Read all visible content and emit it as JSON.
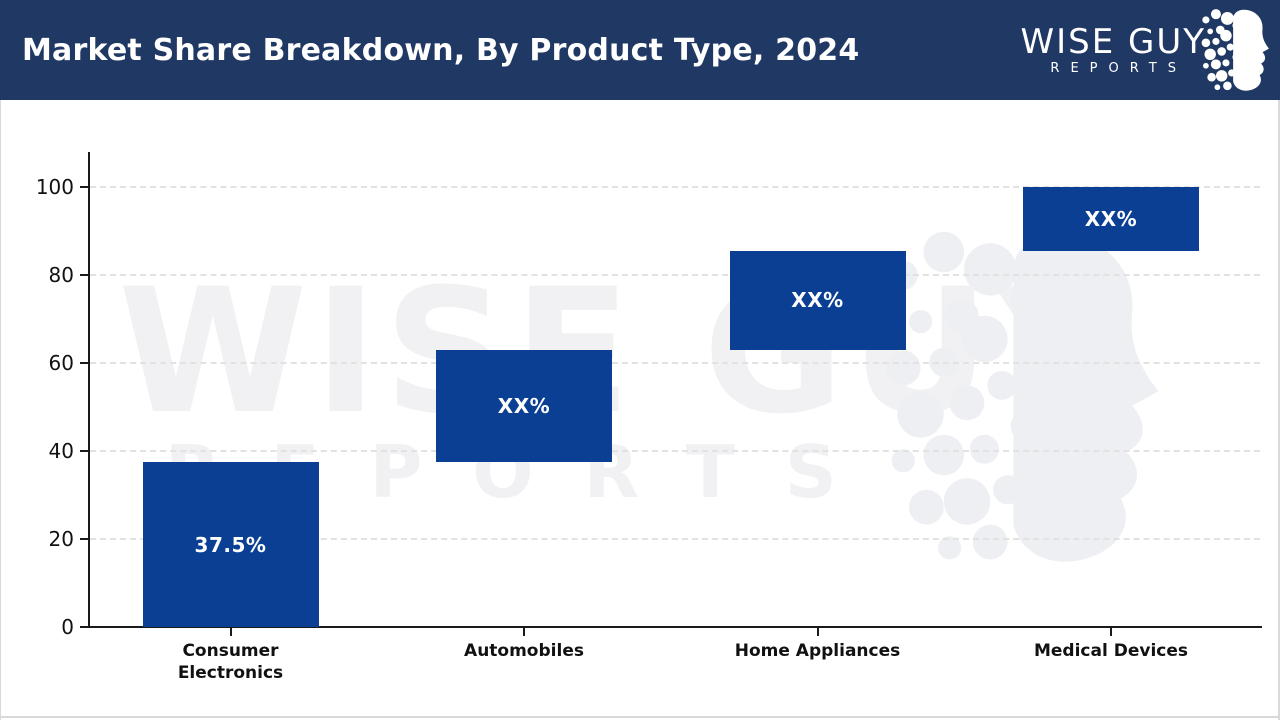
{
  "header": {
    "title": "Market Share Breakdown, By Product Type, 2024",
    "bg_color": "#203864",
    "logo": {
      "line1": "WISE GUY",
      "line2": "REPORTS"
    }
  },
  "watermark": {
    "line1": "WISE GUY",
    "line2": "REPORTS"
  },
  "chart_data": {
    "type": "bar",
    "subtype": "floating-waterfall",
    "title": "Market Share Breakdown, By Product Type, 2024",
    "categories": [
      "Consumer Electronics",
      "Automobiles",
      "Home Appliances",
      "Medical Devices"
    ],
    "category_lines": [
      [
        "Consumer",
        "Electronics"
      ],
      [
        "Automobiles"
      ],
      [
        "Home Appliances"
      ],
      [
        "Medical Devices"
      ]
    ],
    "segments": [
      [
        0,
        37.5
      ],
      [
        37.5,
        63
      ],
      [
        63,
        85.5
      ],
      [
        85.5,
        100
      ]
    ],
    "values": [
      37.5,
      25.5,
      22.5,
      14.5
    ],
    "bar_labels": [
      "37.5%",
      "XX%",
      "XX%",
      "XX%"
    ],
    "bar_color": "#0b3f93",
    "label_color": "#ffffff",
    "yticks": [
      0,
      20,
      40,
      60,
      80,
      100
    ],
    "ylim": [
      0,
      105
    ],
    "xlabel": "",
    "ylabel": "",
    "grid": "horizontal-dashed",
    "legend": "none"
  }
}
